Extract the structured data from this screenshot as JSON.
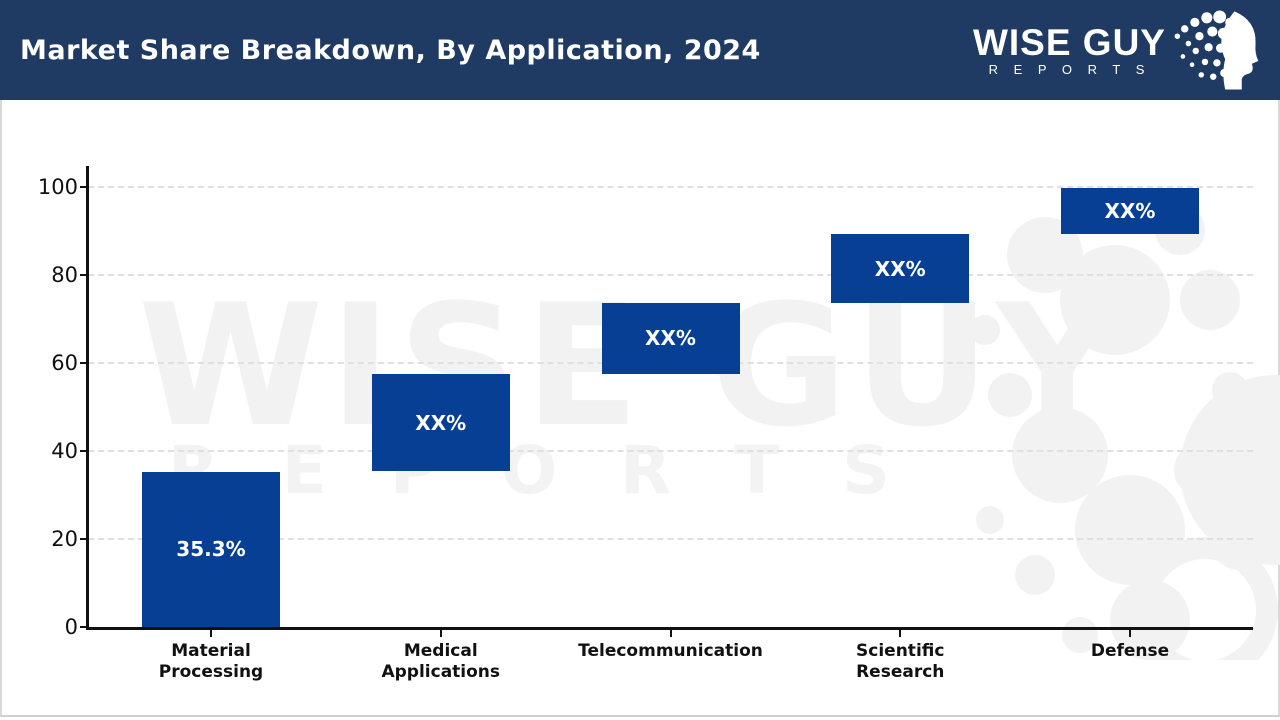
{
  "header": {
    "title": "Market Share Breakdown, By Application, 2024",
    "bg_color": "#1f3a63",
    "logo": {
      "line1": "WISE GUY",
      "line2": "R E P O R T S"
    }
  },
  "watermark": {
    "line1": "WISE GUY",
    "line2": "R E P O R T S"
  },
  "chart_data": {
    "type": "bar",
    "subtype": "waterfall",
    "title": "Market Share Breakdown, By Application, 2024",
    "xlabel": "",
    "ylabel": "",
    "categories": [
      "Material\nProcessing",
      "Medical\nApplications",
      "Telecommunication",
      "Scientific\nResearch",
      "Defense"
    ],
    "segments": [
      {
        "category": "Material Processing",
        "start": 0,
        "end": 35.3,
        "label": "35.3%"
      },
      {
        "category": "Medical Applications",
        "start": 35.3,
        "end": 57.5,
        "label": "XX%"
      },
      {
        "category": "Telecommunication",
        "start": 57.5,
        "end": 73.5,
        "label": "XX%"
      },
      {
        "category": "Scientific Research",
        "start": 73.5,
        "end": 89.2,
        "label": "XX%"
      },
      {
        "category": "Defense",
        "start": 89.2,
        "end": 99.7,
        "label": "XX%"
      }
    ],
    "yticks": [
      0,
      20,
      40,
      60,
      80,
      100
    ],
    "ylim": [
      0,
      104
    ],
    "grid": "horizontal-dashed",
    "legend": "none",
    "colors": {
      "bar": "#063f94",
      "bar_label": "#ffffff",
      "axis": "#111111",
      "grid": "#e0e0e0",
      "tick_label": "#111111"
    }
  }
}
